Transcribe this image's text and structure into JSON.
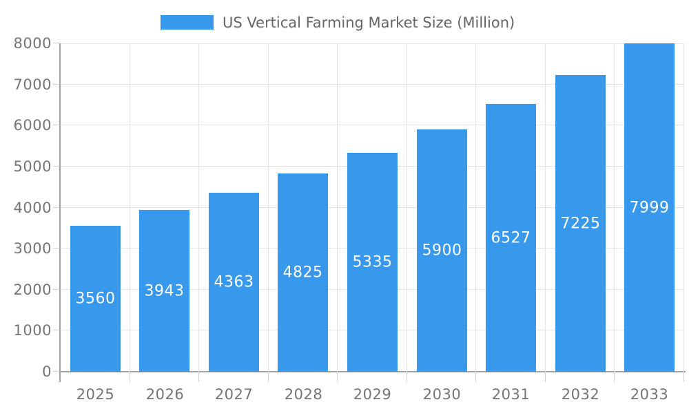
{
  "chart_data": {
    "type": "bar",
    "title": "US Vertical Farming Market Size (Million)",
    "categories": [
      "2025",
      "2026",
      "2027",
      "2028",
      "2029",
      "2030",
      "2031",
      "2032",
      "2033"
    ],
    "values": [
      3560,
      3943,
      4363,
      4825,
      5335,
      5900,
      6527,
      7225,
      7999
    ],
    "xlabel": "",
    "ylabel": "",
    "ylim": [
      0,
      8000
    ],
    "ytick_step": 1000,
    "yticks": [
      "0",
      "1000",
      "2000",
      "3000",
      "4000",
      "5000",
      "6000",
      "7000",
      "8000"
    ],
    "grid": true,
    "legend_position": "top",
    "value_label_position": "inside-center",
    "colors": {
      "bar": "#3898EC",
      "grid": "#E3E3E3",
      "tick": "#D2D2D2",
      "axis_line": "#A2A2A2",
      "axis_text": "#757575",
      "legend_text": "#666666",
      "value_label": "#FFFFFF"
    }
  }
}
